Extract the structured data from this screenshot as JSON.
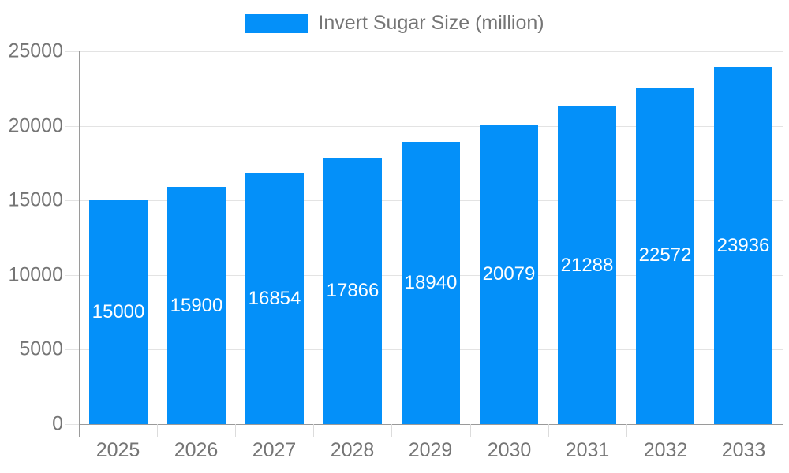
{
  "chart_data": {
    "type": "bar",
    "title": "",
    "legend": "Invert Sugar Size (million)",
    "legend_position": "top",
    "categories": [
      "2025",
      "2026",
      "2027",
      "2028",
      "2029",
      "2030",
      "2031",
      "2032",
      "2033"
    ],
    "values": [
      15000,
      15900,
      16854,
      17866,
      18940,
      20079,
      21288,
      22572,
      23936
    ],
    "xlabel": "",
    "ylabel": "",
    "ylim": [
      0,
      25000
    ],
    "yticks": [
      0,
      5000,
      10000,
      15000,
      20000,
      25000
    ],
    "grid": true,
    "data_labels": "inside-center-white",
    "colors": {
      "bar": "#0490f9",
      "bar_label": "#ffffff",
      "axis_text": "#757575",
      "grid_line": "#e3e3e3",
      "tick_line": "#dcdcdc",
      "axis_line": "#9a9a9a",
      "background": "#ffffff"
    }
  }
}
